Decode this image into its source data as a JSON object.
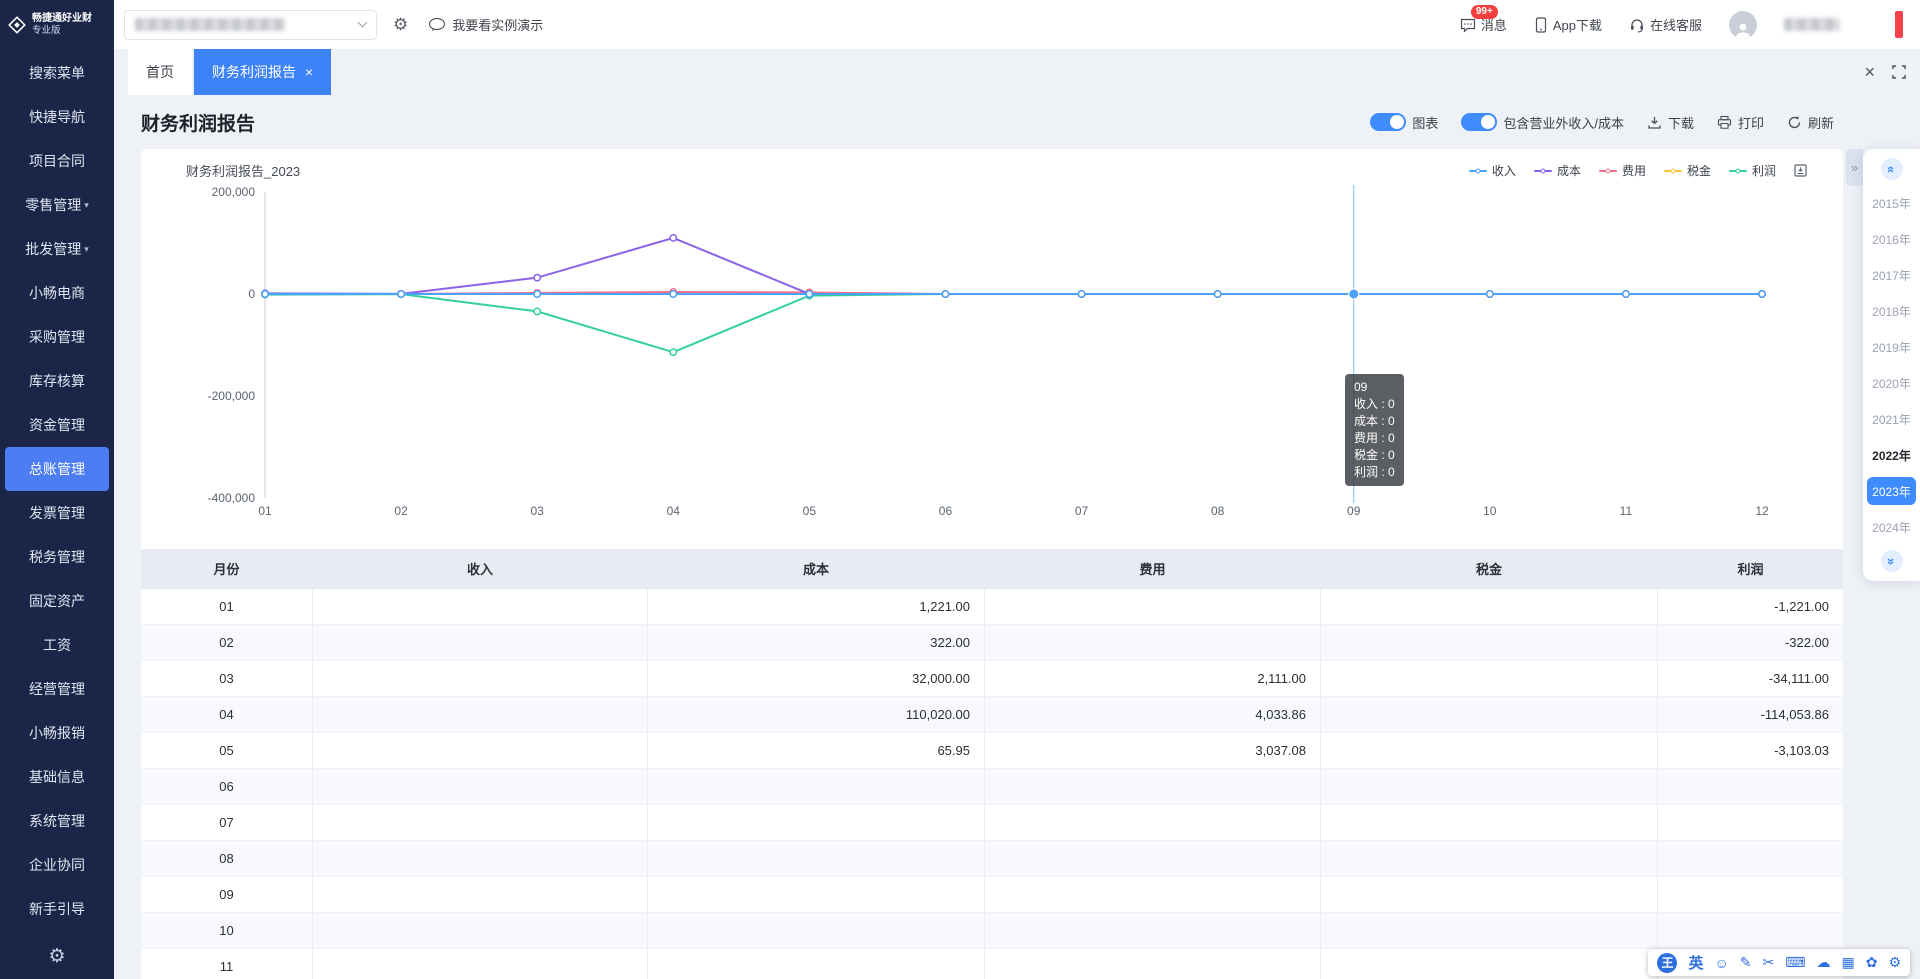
{
  "brand": {
    "name": "畅捷通好业财",
    "edition": "专业版"
  },
  "icons": {
    "caret_down": "▾",
    "close": "×",
    "gear": "⚙",
    "double_up": "«",
    "double_down": "»",
    "collapse": "»"
  },
  "sidebar": {
    "items": [
      {
        "label": "搜索菜单"
      },
      {
        "label": "快捷导航"
      },
      {
        "label": "项目合同"
      },
      {
        "label": "零售管理",
        "has_arrow": true
      },
      {
        "label": "批发管理",
        "has_arrow": true
      },
      {
        "label": "小畅电商"
      },
      {
        "label": "采购管理"
      },
      {
        "label": "库存核算"
      },
      {
        "label": "资金管理"
      },
      {
        "label": "总账管理",
        "active": true
      },
      {
        "label": "发票管理"
      },
      {
        "label": "税务管理"
      },
      {
        "label": "固定资产"
      },
      {
        "label": "工资"
      },
      {
        "label": "经营管理"
      },
      {
        "label": "小畅报销"
      },
      {
        "label": "基础信息"
      },
      {
        "label": "系统管理"
      },
      {
        "label": "企业协同"
      },
      {
        "label": "新手引导"
      }
    ]
  },
  "topbar": {
    "demo": "我要看实例演示",
    "messages": "消息",
    "badge": "99+",
    "app_download": "App下载",
    "support": "在线客服"
  },
  "tabs": [
    {
      "label": "首页",
      "active": false
    },
    {
      "label": "财务利润报告",
      "active": true,
      "closable": true
    }
  ],
  "page": {
    "title": "财务利润报告"
  },
  "toolbar": {
    "chart_toggle": "图表",
    "include_toggle": "包含营业外收入/成本",
    "download": "下载",
    "print": "打印",
    "refresh": "刷新"
  },
  "chart_data": {
    "type": "line",
    "title": "财务利润报告_2023",
    "x": [
      "01",
      "02",
      "03",
      "04",
      "05",
      "06",
      "07",
      "08",
      "09",
      "10",
      "11",
      "12"
    ],
    "ylim": [
      -400000,
      200000
    ],
    "yticks": [
      {
        "v": 200000,
        "label": "200,000"
      },
      {
        "v": 0,
        "label": "0"
      },
      {
        "v": -200000,
        "label": "-200,000"
      },
      {
        "v": -400000,
        "label": "-400,000"
      }
    ],
    "grid": false,
    "legend_position": "top-right",
    "series": [
      {
        "name": "收入",
        "color": "#4ca2f9",
        "values": [
          0,
          0,
          0,
          0,
          0,
          0,
          0,
          0,
          0,
          0,
          0,
          0
        ]
      },
      {
        "name": "成本",
        "color": "#8a63e8",
        "values": [
          1221,
          322,
          32000,
          110020,
          65.95,
          0,
          0,
          0,
          0,
          0,
          0,
          0
        ]
      },
      {
        "name": "费用",
        "color": "#f2708a",
        "values": [
          0,
          0,
          2111,
          4033.86,
          3037.08,
          0,
          0,
          0,
          0,
          0,
          0,
          0
        ]
      },
      {
        "name": "税金",
        "color": "#f7c739",
        "values": [
          0,
          0,
          0,
          0,
          0,
          0,
          0,
          0,
          0,
          0,
          0,
          0
        ]
      },
      {
        "name": "利润",
        "color": "#33cfa3",
        "values": [
          -1221,
          -322,
          -34111,
          -114053.86,
          -3103.03,
          0,
          0,
          0,
          0,
          0,
          0,
          0
        ]
      }
    ],
    "highlight_index": 8,
    "tooltip": {
      "title": "09",
      "rows": [
        "收入 : 0",
        "成本 : 0",
        "费用 : 0",
        "税金 : 0",
        "利润 : 0"
      ]
    }
  },
  "year_panel": {
    "years": [
      {
        "label": "2015年"
      },
      {
        "label": "2016年"
      },
      {
        "label": "2017年"
      },
      {
        "label": "2018年"
      },
      {
        "label": "2019年"
      },
      {
        "label": "2020年"
      },
      {
        "label": "2021年"
      },
      {
        "label": "2022年",
        "emphasis": true
      },
      {
        "label": "2023年",
        "active": true
      },
      {
        "label": "2024年"
      }
    ]
  },
  "table": {
    "headers": [
      "月份",
      "收入",
      "成本",
      "费用",
      "税金",
      "利润"
    ],
    "rows": [
      {
        "month": "01",
        "income": "",
        "cost": "1,221.00",
        "expense": "",
        "tax": "",
        "profit": "-1,221.00"
      },
      {
        "month": "02",
        "income": "",
        "cost": "322.00",
        "expense": "",
        "tax": "",
        "profit": "-322.00"
      },
      {
        "month": "03",
        "income": "",
        "cost": "32,000.00",
        "expense": "2,111.00",
        "tax": "",
        "profit": "-34,111.00"
      },
      {
        "month": "04",
        "income": "",
        "cost": "110,020.00",
        "expense": "4,033.86",
        "tax": "",
        "profit": "-114,053.86"
      },
      {
        "month": "05",
        "income": "",
        "cost": "65.95",
        "expense": "3,037.08",
        "tax": "",
        "profit": "-3,103.03"
      },
      {
        "month": "06",
        "income": "",
        "cost": "",
        "expense": "",
        "tax": "",
        "profit": ""
      },
      {
        "month": "07",
        "income": "",
        "cost": "",
        "expense": "",
        "tax": "",
        "profit": ""
      },
      {
        "month": "08",
        "income": "",
        "cost": "",
        "expense": "",
        "tax": "",
        "profit": ""
      },
      {
        "month": "09",
        "income": "",
        "cost": "",
        "expense": "",
        "tax": "",
        "profit": ""
      },
      {
        "month": "10",
        "income": "",
        "cost": "",
        "expense": "",
        "tax": "",
        "profit": ""
      },
      {
        "month": "11",
        "income": "",
        "cost": "",
        "expense": "",
        "tax": "",
        "profit": ""
      }
    ]
  },
  "ime": {
    "badge": "王",
    "mode": "英",
    "icons": [
      {
        "name": "emoji-icon",
        "glyph": "☺"
      },
      {
        "name": "handwriting-icon",
        "glyph": "✎"
      },
      {
        "name": "screenshot-icon",
        "glyph": "✂"
      },
      {
        "name": "keyboard-icon",
        "glyph": "⌨"
      },
      {
        "name": "cloud-input-icon",
        "glyph": "☁"
      },
      {
        "name": "skin-icon",
        "glyph": "▦"
      },
      {
        "name": "toolbox-icon",
        "glyph": "✿"
      },
      {
        "name": "ime-settings-icon",
        "glyph": "⚙"
      }
    ]
  }
}
